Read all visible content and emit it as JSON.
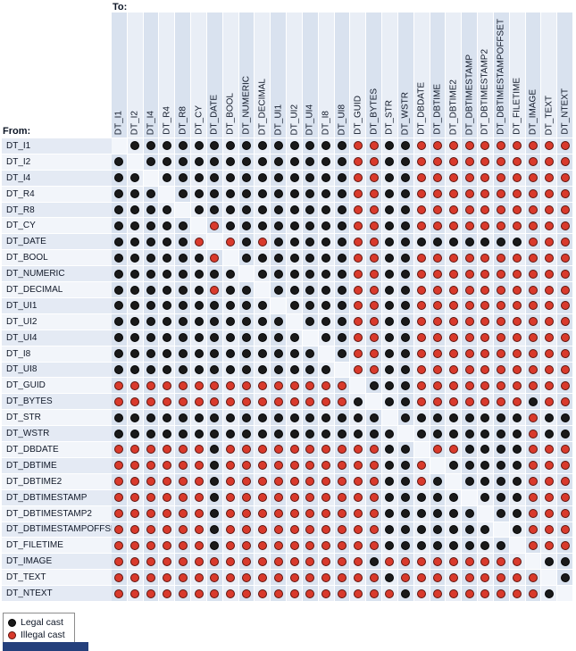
{
  "figure": {
    "to_label": "To:",
    "from_label": "From:",
    "legend": [
      {
        "key": "legal",
        "label": "Legal cast",
        "color": "#1a1a1a"
      },
      {
        "key": "illegal",
        "label": "Illegal cast",
        "color": "#d93a2c"
      }
    ],
    "colors": {
      "column_stripe_dark": "#d9e2ef",
      "column_stripe_light": "#e9eef6",
      "diagonal_cell": "#f3f6fb",
      "bottom_bar": "#24407c"
    }
  },
  "chart_data": {
    "type": "heatmap",
    "x_axis_label": "To:",
    "y_axis_label": "From:",
    "legend": {
      "L": "Legal cast",
      "I": "Illegal cast",
      ".": "same type (no dot)"
    },
    "columns": [
      "DT_I1",
      "DT_I2",
      "DT_I4",
      "DT_R4",
      "DT_R8",
      "DT_CY",
      "DT_DATE",
      "DT_BOOL",
      "DT_NUMERIC",
      "DT_DECIMAL",
      "DT_UI1",
      "DT_UI2",
      "DT_UI4",
      "DT_I8",
      "DT_UI8",
      "DT_GUID",
      "DT_BYTES",
      "DT_STR",
      "DT_WSTR",
      "DT_DBDATE",
      "DT_DBTIME",
      "DT_DBTIME2",
      "DT_DBTIMESTAMP",
      "DT_DBTIMESTAMP2",
      "DT_DBTIMESTAMPOFFSET",
      "DT_FILETIME",
      "DT_IMAGE",
      "DT_TEXT",
      "DT_NTEXT"
    ],
    "rows": [
      "DT_I1",
      "DT_I2",
      "DT_I4",
      "DT_R4",
      "DT_R8",
      "DT_CY",
      "DT_DATE",
      "DT_BOOL",
      "DT_NUMERIC",
      "DT_DECIMAL",
      "DT_UI1",
      "DT_UI2",
      "DT_UI4",
      "DT_I8",
      "DT_UI8",
      "DT_GUID",
      "DT_BYTES",
      "DT_STR",
      "DT_WSTR",
      "DT_DBDATE",
      "DT_DBTIME",
      "DT_DBTIME2",
      "DT_DBTIMESTAMP",
      "DT_DBTIMESTAMP2",
      "DT_DBTIMESTAMPOFFSET",
      "DT_FILETIME",
      "DT_IMAGE",
      "DT_TEXT",
      "DT_NTEXT"
    ],
    "matrix": [
      ".LLLLLLLLLLLLLLIILLIIIIIIIIII",
      "L.LLLLLLLLLLLLLIILLIIIIIIIIII",
      "LL.LLLLLLLLLLLLIILLIIIIIIIIII",
      "LLL.LLLLLLLLLLLIILLIIIIIIIIII",
      "LLLL.LLLLLLLLLLIILLIIIIIIIIII",
      "LLLLL.ILLLLLLLLIILLIIIIIIIIII",
      "LLLLLI.ILILLLLLIILLLLLLLLLIII",
      "LLLLLLI.LLLLLLLIILLIIIIIIIIII",
      "LLLLLLLL.LLLLLLIILLIIIIIIIIII",
      "LLLLLLILL.LLLLLIILLIIIIIIIIII",
      "LLLLLLLLLL.LLLLIILLIIIIIIIIII",
      "LLLLLLLLLLL.LLLIILLIIIIIIIIII",
      "LLLLLLLLLLLL.LLIILLIIIIIIIIII",
      "LLLLLLLLLLLLL.LIILLIIIIIIIIII",
      "LLLLLLLLLLLLLL.IILLIIIIIIIIII",
      "IIIIIIIIIIIIIII.LLLIIIIIIIIII",
      "IIIIIIIIIIIIIIIL.LLIIIIIIILII",
      "LLLLLLLLLLLLLLLLL.LLLLLLLLILL",
      "LLLLLLLLLLLLLLLLLL.LLLLLLLILL",
      "IIIIIILIIIIIIIIIILL.IILLLLIII",
      "IIIIIILIIIIIIIIIILLI.LLLLLIII",
      "IIIIIILIIIIIIIIIILLIL.LLLLIII",
      "IIIIIILIIIIIIIIIILLLLL.LLLIII",
      "IIIIIILIIIIIIIIIILLLLLL.LLIII",
      "IIIIIILIIIIIIIIIILLLLLLL.LIII",
      "IIIIIILIIIIIIIIIILLLLLLLL.III",
      "IIIIIIIIIIIIIIIILIIIIIIIII.LL",
      "IIIIIIIIIIIIIIIIILIIIIIIIII.L",
      "IIIIIIIIIIIIIIIIIILIIIIIIIIL."
    ]
  }
}
